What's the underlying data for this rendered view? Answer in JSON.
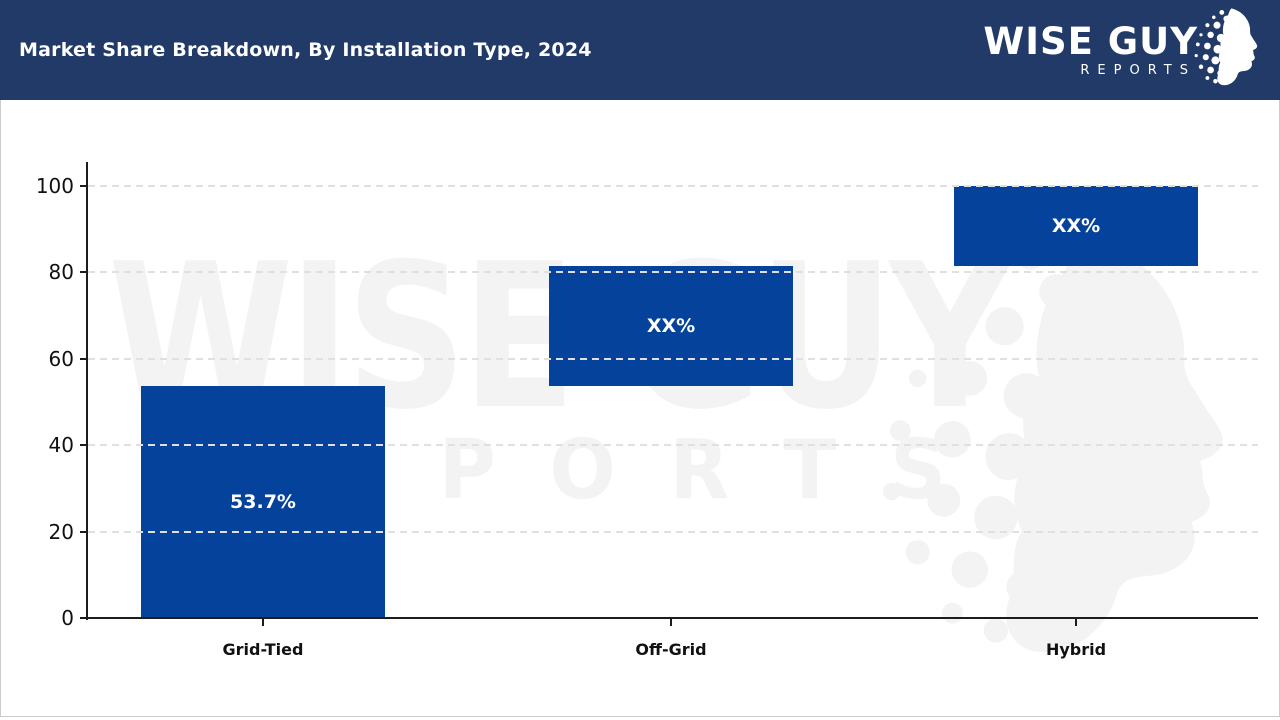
{
  "header": {
    "title": "Market Share Breakdown, By Installation Type, 2024",
    "bg_color": "#213a68",
    "logo": {
      "wordmark": "WISE GUY",
      "subtitle": "REPORTS"
    }
  },
  "watermark": {
    "wordmark": "WISE GUY",
    "subtitle": "R E P O R T S"
  },
  "chart_data": {
    "type": "bar",
    "subtype": "floating-waterfall",
    "title": "Market Share Breakdown, By Installation Type, 2024",
    "categories": [
      "Grid-Tied",
      "Off-Grid",
      "Hybrid"
    ],
    "segments": [
      {
        "category": "Grid-Tied",
        "start": 0,
        "end": 53.7,
        "label": "53.7%"
      },
      {
        "category": "Off-Grid",
        "start": 53.7,
        "end": 81.5,
        "label": "XX%"
      },
      {
        "category": "Hybrid",
        "start": 81.5,
        "end": 100,
        "label": "XX%"
      }
    ],
    "bar_color": "#05429b",
    "label_color": "#ffffff",
    "yticks": [
      0,
      20,
      40,
      60,
      80,
      100
    ],
    "ylim": [
      0,
      100
    ],
    "xlabel": "",
    "ylabel": "",
    "grid": "dashed-horizontal",
    "legend": "none"
  }
}
